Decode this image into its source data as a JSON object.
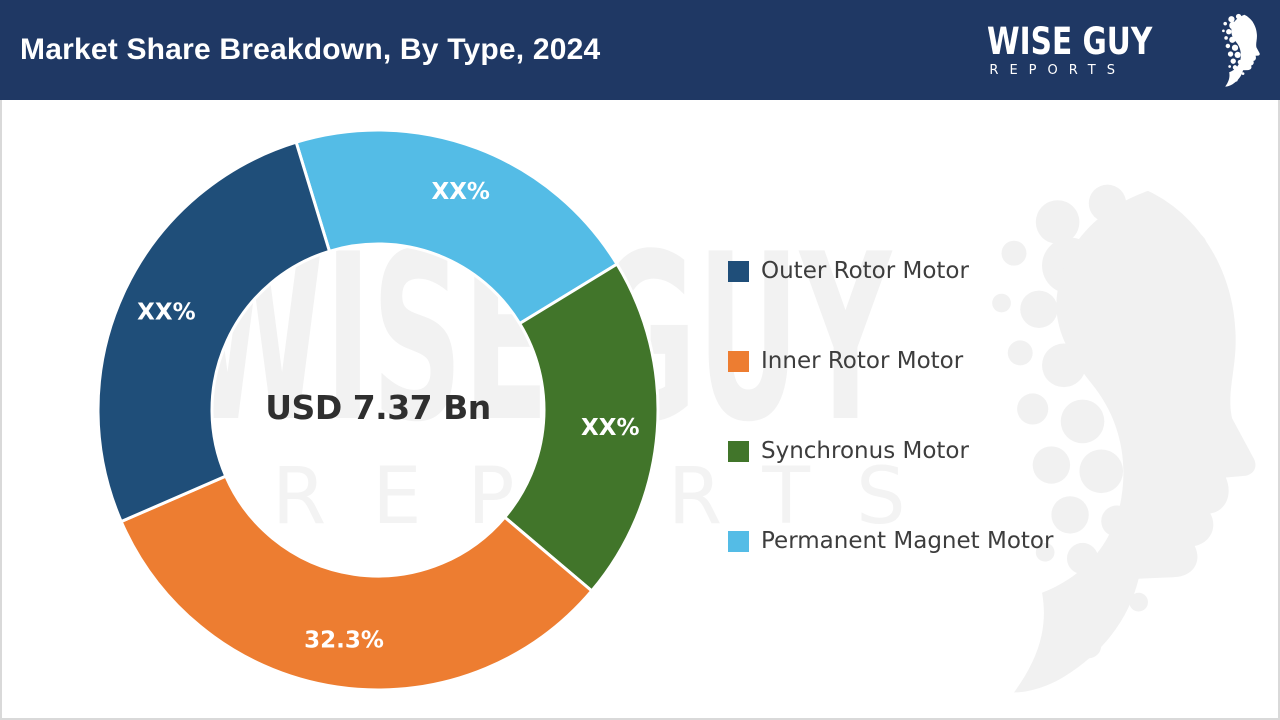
{
  "header": {
    "title": "Market Share Breakdown, By Type, 2024",
    "logo": {
      "line1": "WISE GUY",
      "line2": "REPORTS"
    }
  },
  "watermark": {
    "line1": "WISE GUY",
    "line2": "REPORTS"
  },
  "chart_data": {
    "type": "donut",
    "title": "Market Share Breakdown, By Type, 2024",
    "center_label": "USD 7.37 Bn",
    "start_angle_deg": -17,
    "segments_clockwise": [
      {
        "name": "Permanent Magnet Motor",
        "display_label": "XX%",
        "pct_est": 21.0,
        "color": "#54BCE6"
      },
      {
        "name": "Synchronus Motor",
        "display_label": "XX%",
        "pct_est": 19.9,
        "color": "#41752A"
      },
      {
        "name": "Inner Rotor Motor",
        "display_label": "32.3%",
        "pct_est": 32.3,
        "color": "#ED7D31"
      },
      {
        "name": "Outer Rotor Motor",
        "display_label": "XX%",
        "pct_est": 26.8,
        "color": "#1F4E79"
      }
    ],
    "legend": [
      {
        "label": "Outer Rotor Motor",
        "color": "#1F4E79"
      },
      {
        "label": "Inner Rotor Motor",
        "color": "#ED7D31"
      },
      {
        "label": "Synchronus Motor",
        "color": "#41752A"
      },
      {
        "label": "Permanent Magnet Motor",
        "color": "#54BCE6"
      }
    ],
    "colors": {
      "header_bg": "#1F3864",
      "center_text": "#2F2F2F",
      "legend_text": "#3D3D3D",
      "watermark": "#F2F2F2",
      "segment_gap": "#FFFFFF"
    },
    "layout": {
      "legend_position": "right",
      "labels": "inside",
      "hole_transparent": true
    }
  }
}
